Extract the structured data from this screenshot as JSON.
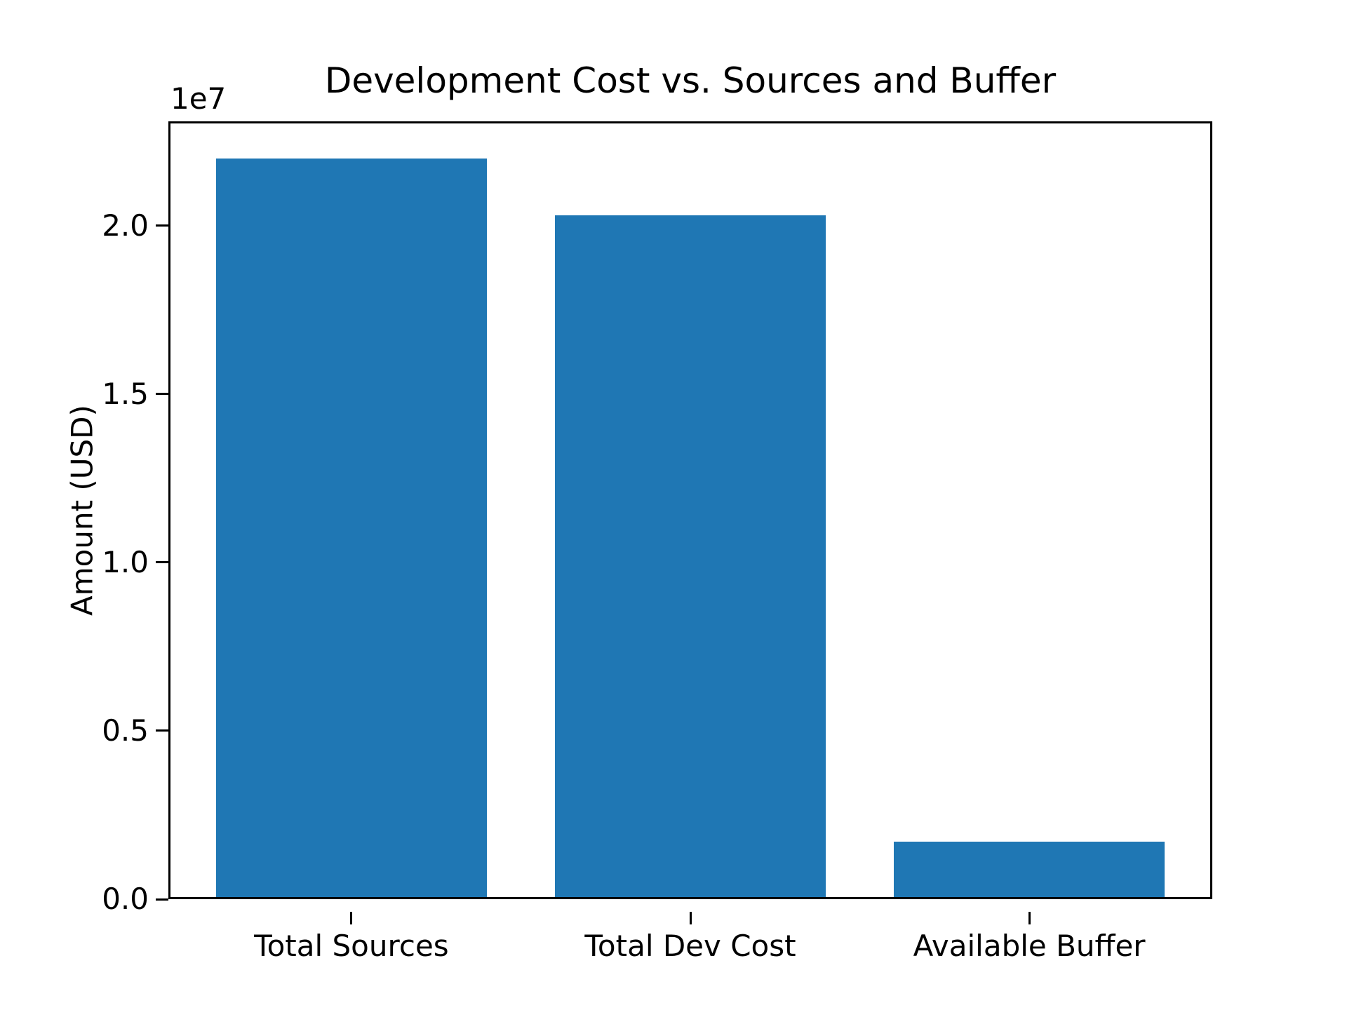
{
  "chart_data": {
    "type": "bar",
    "title": "Development Cost vs. Sources and Buffer",
    "xlabel": "",
    "ylabel": "Amount (USD)",
    "offset_label": "1e7",
    "categories": [
      "Total Sources",
      "Total Dev Cost",
      "Available Buffer"
    ],
    "values": [
      22000000,
      20300000,
      1700000
    ],
    "bar_color": "#1f77b4",
    "bar_width": 0.8,
    "ylim": [
      0,
      23100000
    ],
    "yticks": [
      {
        "value": 0,
        "label": "0.0"
      },
      {
        "value": 5000000,
        "label": "0.5"
      },
      {
        "value": 10000000,
        "label": "1.0"
      },
      {
        "value": 15000000,
        "label": "1.5"
      },
      {
        "value": 20000000,
        "label": "2.0"
      }
    ],
    "grid": false,
    "legend": null
  }
}
